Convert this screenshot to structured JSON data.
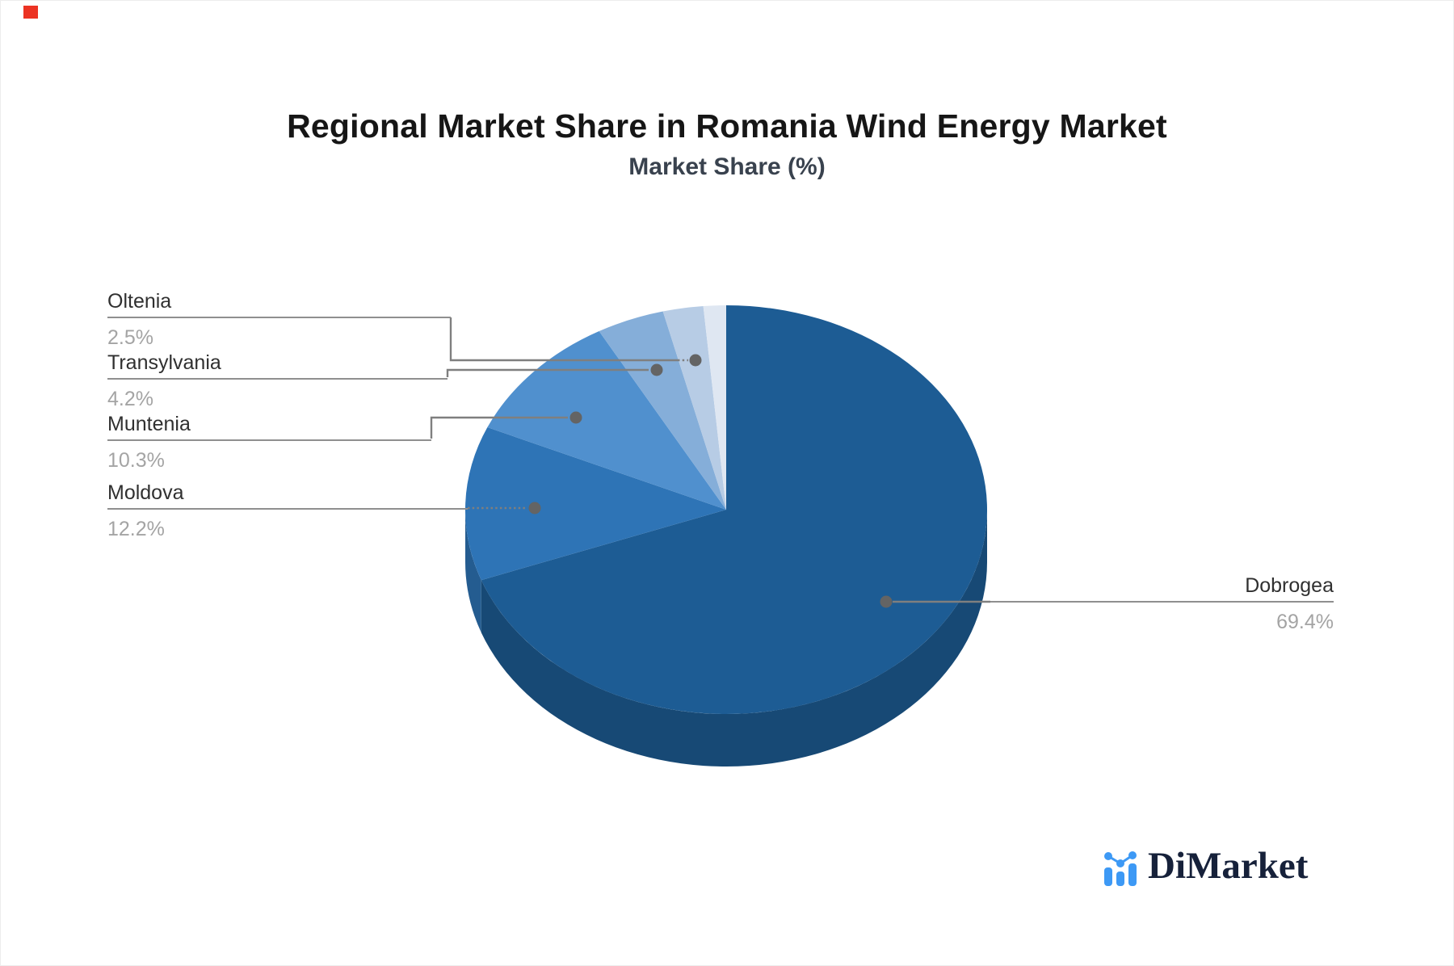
{
  "header": {
    "title": "Regional Market Share in Romania Wind Energy Market",
    "subtitle": "Market Share (%)"
  },
  "chart_data": {
    "type": "pie",
    "style": "3d",
    "title": "Regional Market Share in Romania Wind Energy Market",
    "subtitle": "Market Share (%)",
    "unit": "%",
    "start_angle_deg": 0,
    "direction": "clockwise",
    "segments": [
      {
        "label": "Dobrogea",
        "value": 69.4,
        "value_label": "69.4%",
        "color": "#1d5c94"
      },
      {
        "label": "Moldova",
        "value": 12.2,
        "value_label": "12.2%",
        "color": "#2e74b6"
      },
      {
        "label": "Muntenia",
        "value": 10.3,
        "value_label": "10.3%",
        "color": "#5090ce"
      },
      {
        "label": "Transylvania",
        "value": 4.2,
        "value_label": "4.2%",
        "color": "#85aed9"
      },
      {
        "label": "Oltenia",
        "value": 2.5,
        "value_label": "2.5%",
        "color": "#b7cce5"
      },
      {
        "label": "",
        "value": 1.4,
        "value_label": "",
        "color": "#dfe7f2",
        "note": "unlabeled remainder slice"
      }
    ],
    "leader_line_color": "#7f7f7f",
    "label_name_color": "#303030",
    "label_value_color": "#a4a4a4"
  },
  "branding": {
    "logo_text": "DiMarket",
    "logo_icon": "bar-line-chart-icon",
    "accent_color": "#3d99f5",
    "text_color": "#16213a"
  }
}
